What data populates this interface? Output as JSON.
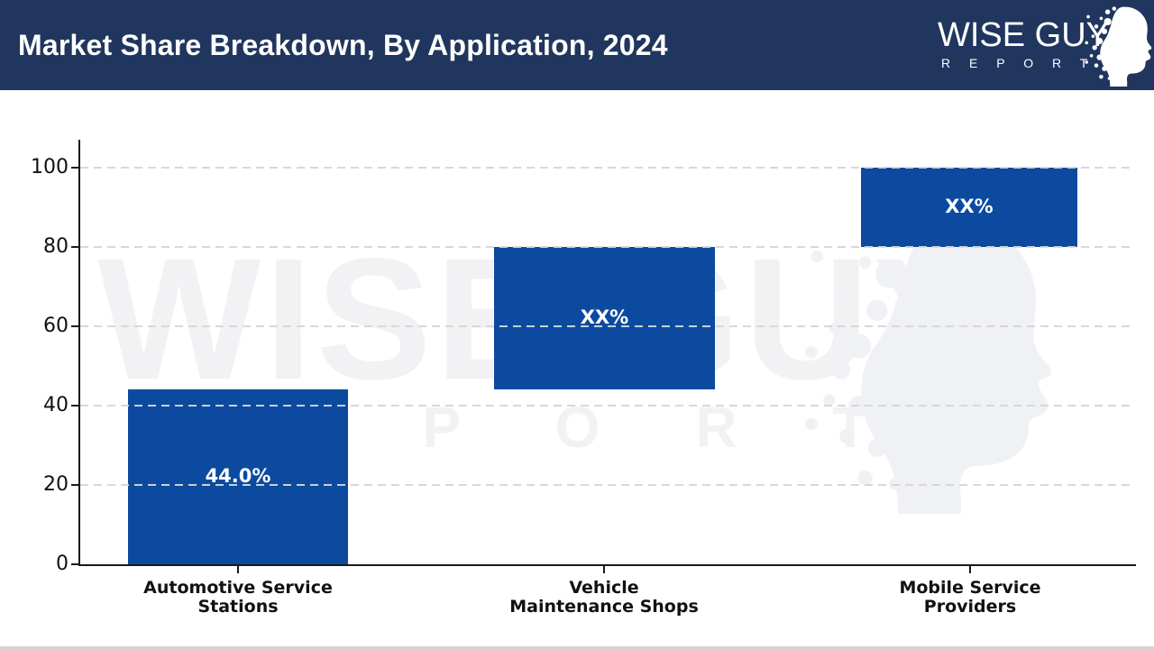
{
  "header": {
    "title": "Market Share Breakdown, By Application, 2024",
    "logo": {
      "wordmark": "WISE GUY",
      "subtext": "R E P O R T S"
    }
  },
  "watermark": {
    "wordmark": "WISE GUY",
    "subtext": "R E P O R T S"
  },
  "chart_data": {
    "type": "bar",
    "variant": "waterfall",
    "title": "Market Share Breakdown, By Application, 2024",
    "categories": [
      [
        "Automotive Service",
        "Stations"
      ],
      [
        "Vehicle",
        "Maintenance Shops"
      ],
      [
        "Mobile Service",
        "Providers"
      ]
    ],
    "bars": [
      {
        "category": "Automotive Service Stations",
        "start": 0,
        "end": 44,
        "label": "44.0%"
      },
      {
        "category": "Vehicle Maintenance Shops",
        "start": 44,
        "end": 80,
        "label": "XX%"
      },
      {
        "category": "Mobile Service Providers",
        "start": 80,
        "end": 100,
        "label": "XX%"
      }
    ],
    "ylim": [
      0,
      100
    ],
    "yticks": [
      0,
      20,
      40,
      60,
      80,
      100
    ],
    "grid": {
      "horizontal": true,
      "style": "dashed"
    },
    "legend": "none",
    "colors": {
      "bar": "#0b4a9f",
      "header_bg": "#21365e",
      "grid": "#d9d9d9",
      "bar_label_text": "#ffffff"
    }
  }
}
